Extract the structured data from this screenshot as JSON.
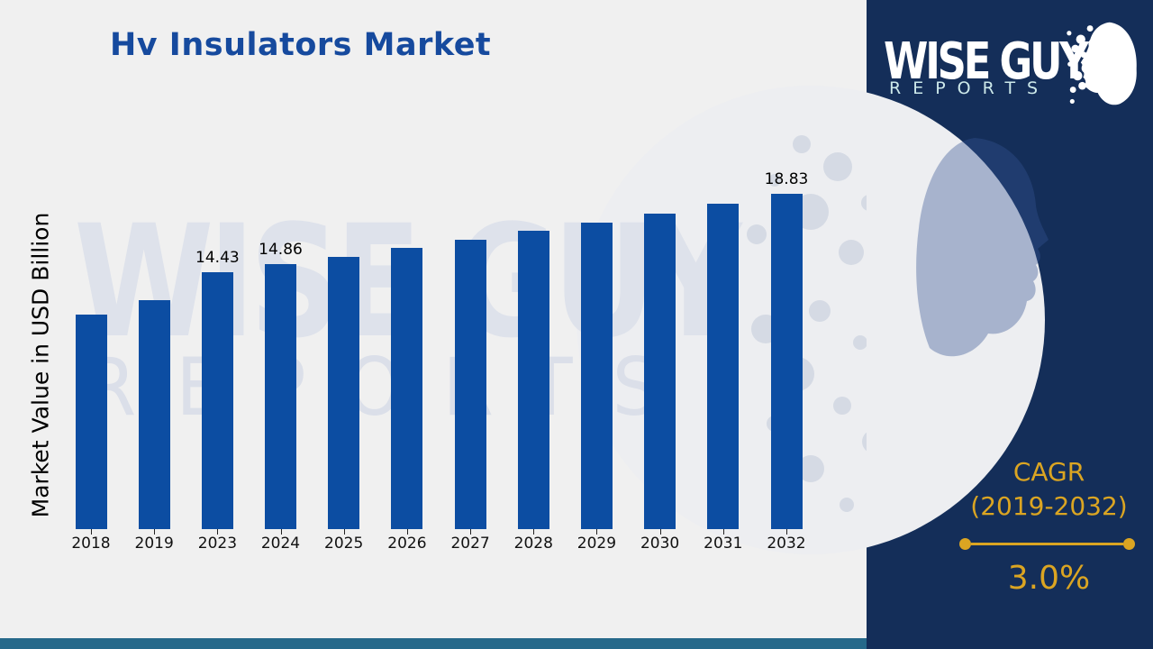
{
  "header": {
    "title": "Hv Insulators Market"
  },
  "logo": {
    "brand_top": "WISE GUY",
    "brand_bottom": "REPORTS"
  },
  "watermark": {
    "line1": "WISE GUY",
    "line2": "REPORTS"
  },
  "chart_data": {
    "type": "bar",
    "title": "Hv Insulators Market",
    "xlabel": "",
    "ylabel": "Market Value in USD Billion",
    "categories": [
      "2018",
      "2019",
      "2023",
      "2024",
      "2025",
      "2026",
      "2027",
      "2028",
      "2029",
      "2030",
      "2031",
      "2032"
    ],
    "values": [
      12.05,
      12.85,
      14.43,
      14.86,
      15.31,
      15.77,
      16.24,
      16.73,
      17.23,
      17.74,
      18.28,
      18.83
    ],
    "value_labels": {
      "2023": "14.43",
      "2024": "14.86",
      "2032": "18.83"
    },
    "ylim": [
      0,
      20
    ],
    "grid": false,
    "legend": null
  },
  "cagr": {
    "label": "CAGR",
    "range": "(2019-2032)",
    "value": "3.0%"
  },
  "colors": {
    "background": "#f0f0f0",
    "bar_blue": "#0c4da2",
    "title_blue": "#164a9e",
    "panel_navy": "#142e59",
    "accent_gold": "#dba522",
    "footer_teal": "#26698a"
  }
}
